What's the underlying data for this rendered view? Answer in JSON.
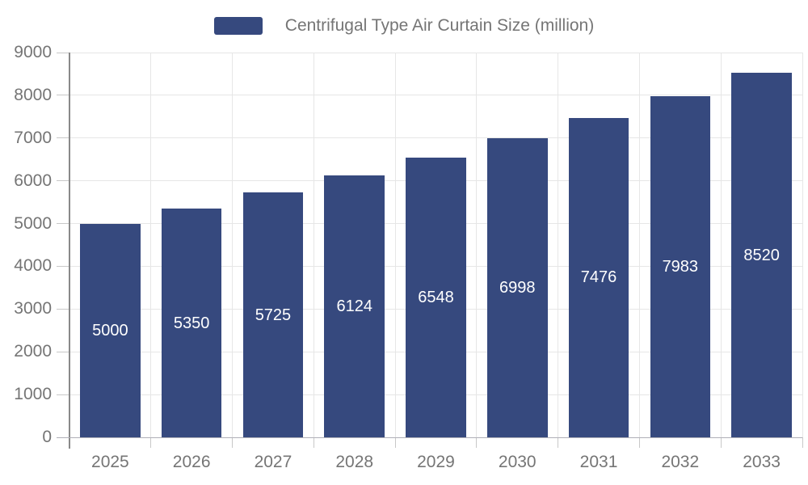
{
  "legend": {
    "label": "Centrifugal Type Air Curtain Size (million)"
  },
  "colors": {
    "bar": "#36497E",
    "bar_label_text": "#FFFFFF",
    "grid": "#E6E6E6",
    "y_axis_line": "#898989",
    "baseline": "#B0B0B8",
    "tick": "#C8C8C8",
    "axis_text": "#757575",
    "legend_text": "#757575"
  },
  "chart_data": {
    "type": "bar",
    "title": "Centrifugal Type Air Curtain Size (million)",
    "series_name": "Centrifugal Type Air Curtain Size (million)",
    "categories": [
      "2025",
      "2026",
      "2027",
      "2028",
      "2029",
      "2030",
      "2031",
      "2032",
      "2033"
    ],
    "values": [
      5000,
      5350,
      5725,
      6124,
      6548,
      6998,
      7476,
      7983,
      8520
    ],
    "bar_labels": [
      "5000",
      "5350",
      "5725",
      "6124",
      "6548",
      "6998",
      "7476",
      "7983",
      "8520"
    ],
    "xlabel": "",
    "ylabel": "",
    "ylim": [
      0,
      9000
    ],
    "ytick_step": 1000,
    "ytick_labels": [
      "0",
      "1000",
      "2000",
      "3000",
      "4000",
      "5000",
      "6000",
      "7000",
      "8000",
      "9000"
    ],
    "grid": true,
    "legend_position": "top",
    "bar_label_position": "inside-center"
  }
}
